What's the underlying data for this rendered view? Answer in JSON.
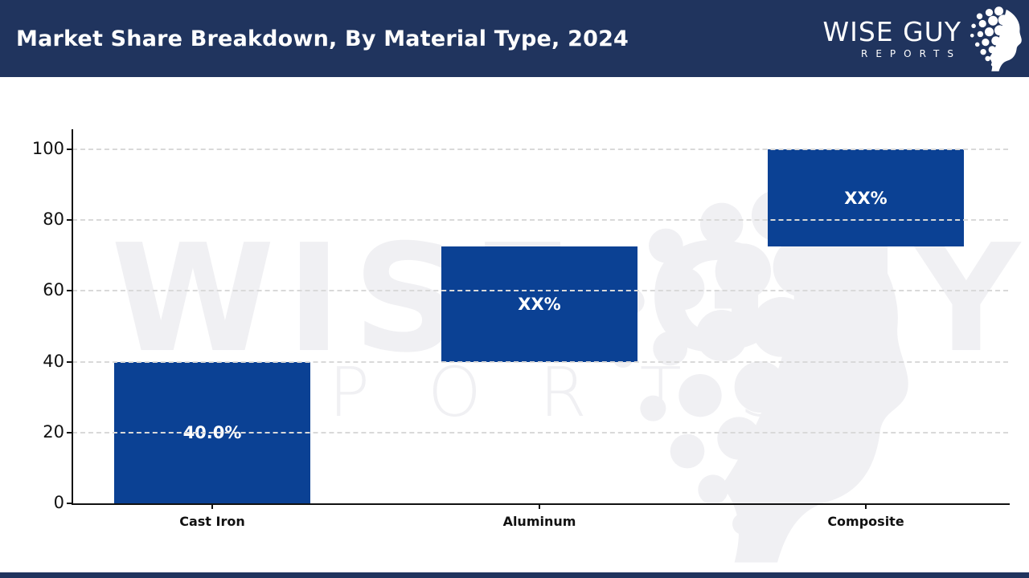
{
  "header": {
    "title": "Market Share Breakdown, By Material Type, 2024",
    "bg_color": "#20345e",
    "logo": {
      "line1": "WISE GUY",
      "line2": "REPORTS"
    }
  },
  "watermark": {
    "line1": "WISE GUY",
    "line2": "REPORTS"
  },
  "chart_data": {
    "type": "bar",
    "subtype": "floating-segment-waterfall",
    "title": "Market Share Breakdown, By Material Type, 2024",
    "categories": [
      "Cast Iron",
      "Aluminum",
      "Composite"
    ],
    "segments": [
      {
        "category": "Cast Iron",
        "start": 0,
        "end": 40,
        "label": "40.0%"
      },
      {
        "category": "Aluminum",
        "start": 40,
        "end": 72.5,
        "label": "XX%"
      },
      {
        "category": "Composite",
        "start": 72.5,
        "end": 100,
        "label": "XX%"
      }
    ],
    "yticks": [
      0,
      20,
      40,
      60,
      80,
      100
    ],
    "ylim": [
      0,
      105
    ],
    "xlabel": "",
    "ylabel": "",
    "grid": "horizontal-dashed-over-bars",
    "legend": "none",
    "bar_color": "#0b4194",
    "grid_color": "#d9d9d9",
    "axis_color": "#111111",
    "value_label_color": "#ffffff"
  }
}
